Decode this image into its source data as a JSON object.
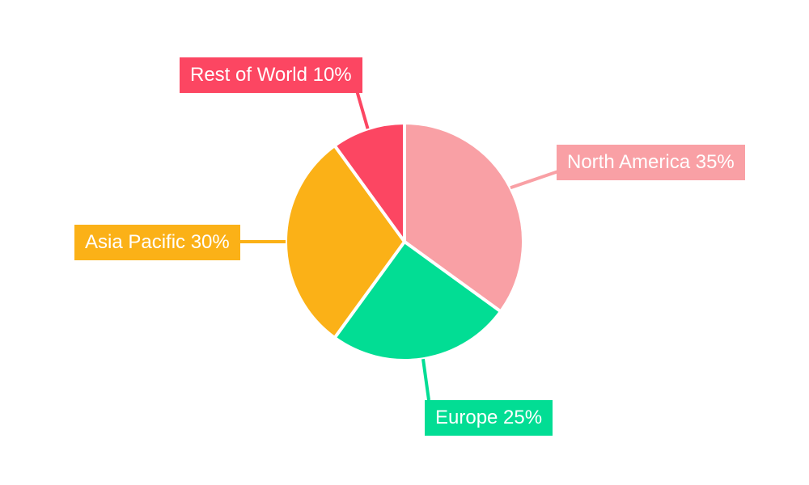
{
  "chart_data": {
    "type": "pie",
    "title": "",
    "categories": [
      "North America",
      "Europe",
      "Asia Pacific",
      "Rest of World"
    ],
    "values": [
      35,
      25,
      30,
      10
    ],
    "unit": "%",
    "labels": [
      "North America 35%",
      "Europe 25%",
      "Asia Pacific 30%",
      "Rest of World 10%"
    ],
    "colors": [
      "#F9A0A5",
      "#02DD94",
      "#FBB117",
      "#FC4662"
    ],
    "slice_separator_color": "#FFFFFF",
    "start_angle": "top",
    "direction": "clockwise",
    "legend_position": "callout-labels"
  },
  "canvas": {
    "background_color": "#FFFFFF"
  }
}
